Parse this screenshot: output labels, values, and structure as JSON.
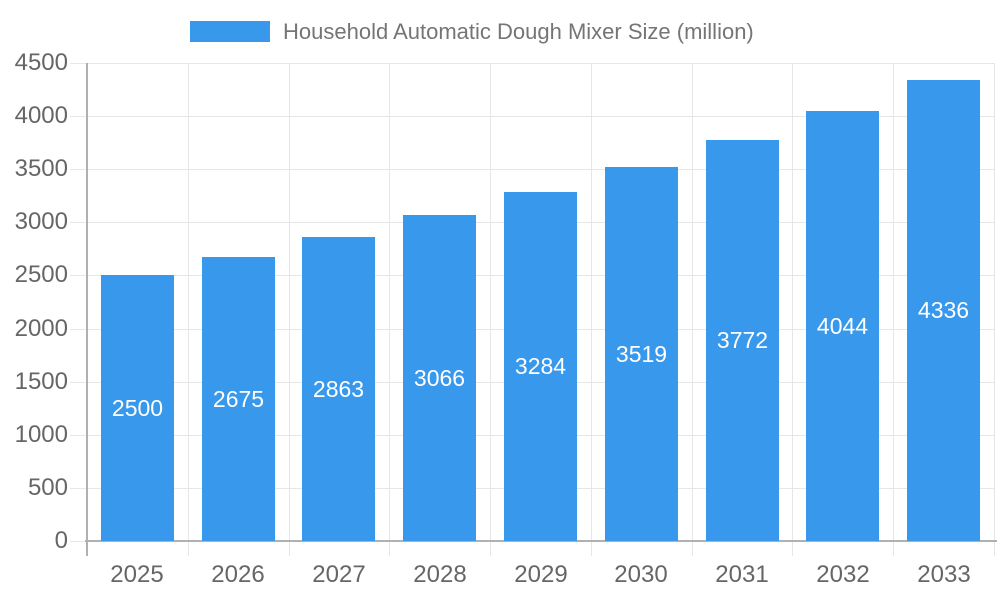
{
  "chart_data": {
    "type": "bar",
    "title": "Household Automatic Dough Mixer Size (million)",
    "legend": {
      "label": "Household Automatic Dough Mixer Size (million)",
      "position": "top"
    },
    "categories": [
      "2025",
      "2026",
      "2027",
      "2028",
      "2029",
      "2030",
      "2031",
      "2032",
      "2033"
    ],
    "series": [
      {
        "name": "Household Automatic Dough Mixer Size (million)",
        "values": [
          2500,
          2675,
          2863,
          3066,
          3284,
          3519,
          3772,
          4044,
          4336
        ]
      }
    ],
    "value_labels_visible": true,
    "xlabel": "",
    "ylabel": "",
    "ylim": [
      0,
      4500
    ],
    "yticks": [
      0,
      500,
      1000,
      1500,
      2000,
      2500,
      3000,
      3500,
      4000,
      4500
    ],
    "grid": true,
    "colors": {
      "bar": "#3898EC",
      "value_label": "#ffffff",
      "legend_text": "#757575",
      "axis_text": "#666666",
      "gridline": "#e6e6e6",
      "axis_line": "#b0b0b0",
      "background": "#ffffff"
    }
  }
}
